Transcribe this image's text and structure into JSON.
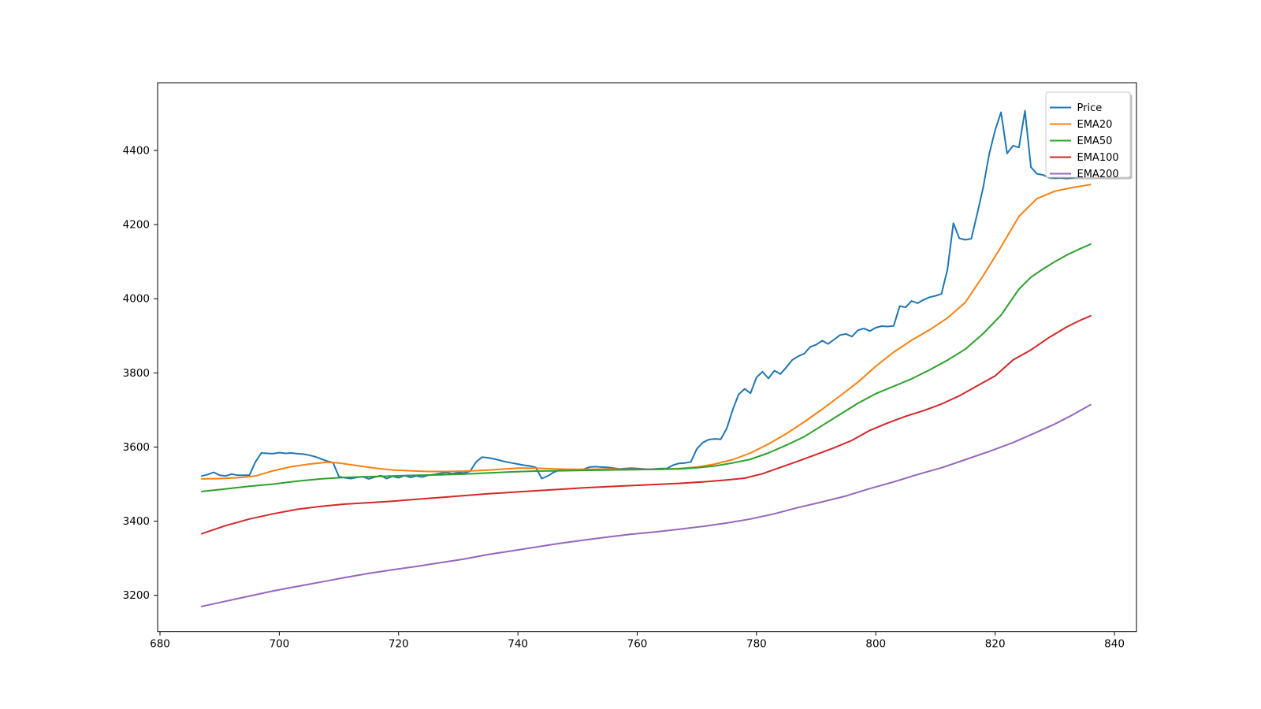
{
  "figure": {
    "background": "#ffffff",
    "text_color": "#000000",
    "spine_color": "#000000"
  },
  "chart_data": {
    "type": "line",
    "title": "",
    "xlabel": "",
    "ylabel": "",
    "grid": false,
    "x_ticks": [
      680,
      700,
      720,
      740,
      760,
      780,
      800,
      820,
      840
    ],
    "y_ticks": [
      3200,
      3400,
      3600,
      3800,
      4000,
      4200,
      4400
    ],
    "x_range_shown": [
      679.6,
      843.7
    ],
    "y_range_shown": [
      3102,
      4583
    ],
    "legend": {
      "position": "upper right",
      "entries": [
        "Price",
        "EMA20",
        "EMA50",
        "EMA100",
        "EMA200"
      ]
    },
    "series": [
      {
        "name": "Price",
        "color": "#1f77b4",
        "x_start": 687,
        "x_step": 1,
        "values": [
          3522,
          3526,
          3532,
          3524,
          3522,
          3527,
          3524,
          3524,
          3524,
          3560,
          3584,
          3583,
          3582,
          3585,
          3583,
          3584,
          3582,
          3581,
          3578,
          3574,
          3568,
          3562,
          3558,
          3520,
          3517,
          3515,
          3518,
          3520,
          3514,
          3519,
          3523,
          3515,
          3521,
          3517,
          3523,
          3518,
          3522,
          3519,
          3524,
          3526,
          3529,
          3531,
          3528,
          3531,
          3530,
          3535,
          3560,
          3573,
          3571,
          3568,
          3564,
          3560,
          3557,
          3554,
          3551,
          3549,
          3545,
          3515,
          3522,
          3532,
          3538,
          3537,
          3538,
          3538,
          3540,
          3546,
          3547,
          3546,
          3545,
          3543,
          3541,
          3542,
          3543,
          3542,
          3541,
          3540,
          3541,
          3542,
          3542,
          3551,
          3556,
          3557,
          3560,
          3595,
          3612,
          3620,
          3622,
          3621,
          3650,
          3700,
          3742,
          3757,
          3745,
          3788,
          3803,
          3785,
          3806,
          3797,
          3815,
          3835,
          3845,
          3852,
          3870,
          3876,
          3887,
          3878,
          3890,
          3902,
          3905,
          3898,
          3915,
          3920,
          3913,
          3922,
          3926,
          3925,
          3927,
          3980,
          3977,
          3994,
          3988,
          3997,
          4004,
          4008,
          4013,
          4078,
          4204,
          4163,
          4159,
          4162,
          4230,
          4300,
          4390,
          4455,
          4503,
          4392,
          4413,
          4408,
          4507,
          4355,
          4337,
          4334,
          4327,
          4325,
          4326,
          4324,
          4326,
          4328,
          4329,
          4331
        ]
      },
      {
        "name": "EMA20",
        "color": "#ff7f0e",
        "points": [
          [
            687,
            3514
          ],
          [
            690,
            3515
          ],
          [
            693,
            3517
          ],
          [
            696,
            3522
          ],
          [
            699,
            3536
          ],
          [
            702,
            3547
          ],
          [
            705,
            3554
          ],
          [
            708,
            3559
          ],
          [
            710,
            3557
          ],
          [
            713,
            3550
          ],
          [
            716,
            3543
          ],
          [
            719,
            3538
          ],
          [
            722,
            3536
          ],
          [
            725,
            3534
          ],
          [
            728,
            3534
          ],
          [
            731,
            3535
          ],
          [
            734,
            3537
          ],
          [
            737,
            3540
          ],
          [
            740,
            3543
          ],
          [
            743,
            3543
          ],
          [
            746,
            3541
          ],
          [
            749,
            3540
          ],
          [
            752,
            3540
          ],
          [
            755,
            3541
          ],
          [
            758,
            3540
          ],
          [
            761,
            3540
          ],
          [
            764,
            3540
          ],
          [
            767,
            3542
          ],
          [
            770,
            3546
          ],
          [
            773,
            3554
          ],
          [
            776,
            3566
          ],
          [
            779,
            3584
          ],
          [
            782,
            3608
          ],
          [
            785,
            3636
          ],
          [
            788,
            3668
          ],
          [
            791,
            3702
          ],
          [
            794,
            3738
          ],
          [
            797,
            3775
          ],
          [
            800,
            3818
          ],
          [
            803,
            3856
          ],
          [
            806,
            3888
          ],
          [
            809,
            3916
          ],
          [
            812,
            3948
          ],
          [
            815,
            3990
          ],
          [
            818,
            4062
          ],
          [
            821,
            4140
          ],
          [
            824,
            4222
          ],
          [
            827,
            4270
          ],
          [
            830,
            4290
          ],
          [
            833,
            4300
          ],
          [
            836,
            4308
          ]
        ]
      },
      {
        "name": "EMA50",
        "color": "#2ca02c",
        "points": [
          [
            687,
            3480
          ],
          [
            691,
            3487
          ],
          [
            695,
            3494
          ],
          [
            699,
            3500
          ],
          [
            703,
            3508
          ],
          [
            707,
            3514
          ],
          [
            711,
            3518
          ],
          [
            715,
            3520
          ],
          [
            719,
            3522
          ],
          [
            723,
            3524
          ],
          [
            727,
            3525
          ],
          [
            731,
            3527
          ],
          [
            735,
            3530
          ],
          [
            739,
            3533
          ],
          [
            743,
            3535
          ],
          [
            747,
            3536
          ],
          [
            751,
            3537
          ],
          [
            755,
            3538
          ],
          [
            759,
            3539
          ],
          [
            763,
            3540
          ],
          [
            767,
            3541
          ],
          [
            770,
            3544
          ],
          [
            773,
            3549
          ],
          [
            776,
            3557
          ],
          [
            779,
            3567
          ],
          [
            782,
            3584
          ],
          [
            785,
            3605
          ],
          [
            788,
            3628
          ],
          [
            791,
            3658
          ],
          [
            794,
            3688
          ],
          [
            797,
            3718
          ],
          [
            800,
            3744
          ],
          [
            803,
            3764
          ],
          [
            806,
            3784
          ],
          [
            809,
            3808
          ],
          [
            812,
            3834
          ],
          [
            815,
            3864
          ],
          [
            818,
            3906
          ],
          [
            821,
            3956
          ],
          [
            824,
            4026
          ],
          [
            826,
            4058
          ],
          [
            828,
            4080
          ],
          [
            830,
            4100
          ],
          [
            832,
            4118
          ],
          [
            834,
            4133
          ],
          [
            836,
            4147
          ]
        ]
      },
      {
        "name": "EMA100",
        "color": "#d62728",
        "points": [
          [
            687,
            3366
          ],
          [
            691,
            3388
          ],
          [
            695,
            3406
          ],
          [
            699,
            3420
          ],
          [
            703,
            3432
          ],
          [
            707,
            3440
          ],
          [
            711,
            3446
          ],
          [
            715,
            3450
          ],
          [
            719,
            3454
          ],
          [
            723,
            3459
          ],
          [
            727,
            3464
          ],
          [
            731,
            3469
          ],
          [
            735,
            3474
          ],
          [
            739,
            3478
          ],
          [
            743,
            3482
          ],
          [
            747,
            3486
          ],
          [
            751,
            3490
          ],
          [
            755,
            3493
          ],
          [
            759,
            3496
          ],
          [
            763,
            3499
          ],
          [
            767,
            3502
          ],
          [
            771,
            3506
          ],
          [
            775,
            3511
          ],
          [
            778,
            3516
          ],
          [
            781,
            3528
          ],
          [
            784,
            3545
          ],
          [
            787,
            3562
          ],
          [
            790,
            3580
          ],
          [
            793,
            3598
          ],
          [
            796,
            3618
          ],
          [
            799,
            3645
          ],
          [
            802,
            3665
          ],
          [
            805,
            3683
          ],
          [
            808,
            3698
          ],
          [
            811,
            3716
          ],
          [
            814,
            3738
          ],
          [
            817,
            3765
          ],
          [
            820,
            3792
          ],
          [
            823,
            3835
          ],
          [
            826,
            3862
          ],
          [
            829,
            3895
          ],
          [
            832,
            3924
          ],
          [
            834,
            3940
          ],
          [
            836,
            3954
          ]
        ]
      },
      {
        "name": "EMA200",
        "color": "#9467bd",
        "points": [
          [
            687,
            3170
          ],
          [
            691,
            3184
          ],
          [
            695,
            3198
          ],
          [
            699,
            3212
          ],
          [
            703,
            3224
          ],
          [
            707,
            3236
          ],
          [
            711,
            3248
          ],
          [
            715,
            3259
          ],
          [
            719,
            3269
          ],
          [
            723,
            3278
          ],
          [
            727,
            3288
          ],
          [
            731,
            3298
          ],
          [
            735,
            3310
          ],
          [
            739,
            3320
          ],
          [
            743,
            3330
          ],
          [
            747,
            3340
          ],
          [
            751,
            3349
          ],
          [
            755,
            3357
          ],
          [
            759,
            3365
          ],
          [
            763,
            3371
          ],
          [
            767,
            3378
          ],
          [
            771,
            3386
          ],
          [
            775,
            3395
          ],
          [
            779,
            3406
          ],
          [
            783,
            3420
          ],
          [
            787,
            3437
          ],
          [
            791,
            3452
          ],
          [
            795,
            3468
          ],
          [
            799,
            3488
          ],
          [
            803,
            3506
          ],
          [
            807,
            3526
          ],
          [
            811,
            3544
          ],
          [
            815,
            3566
          ],
          [
            819,
            3588
          ],
          [
            823,
            3612
          ],
          [
            827,
            3640
          ],
          [
            830,
            3662
          ],
          [
            833,
            3687
          ],
          [
            836,
            3714
          ]
        ]
      }
    ]
  }
}
